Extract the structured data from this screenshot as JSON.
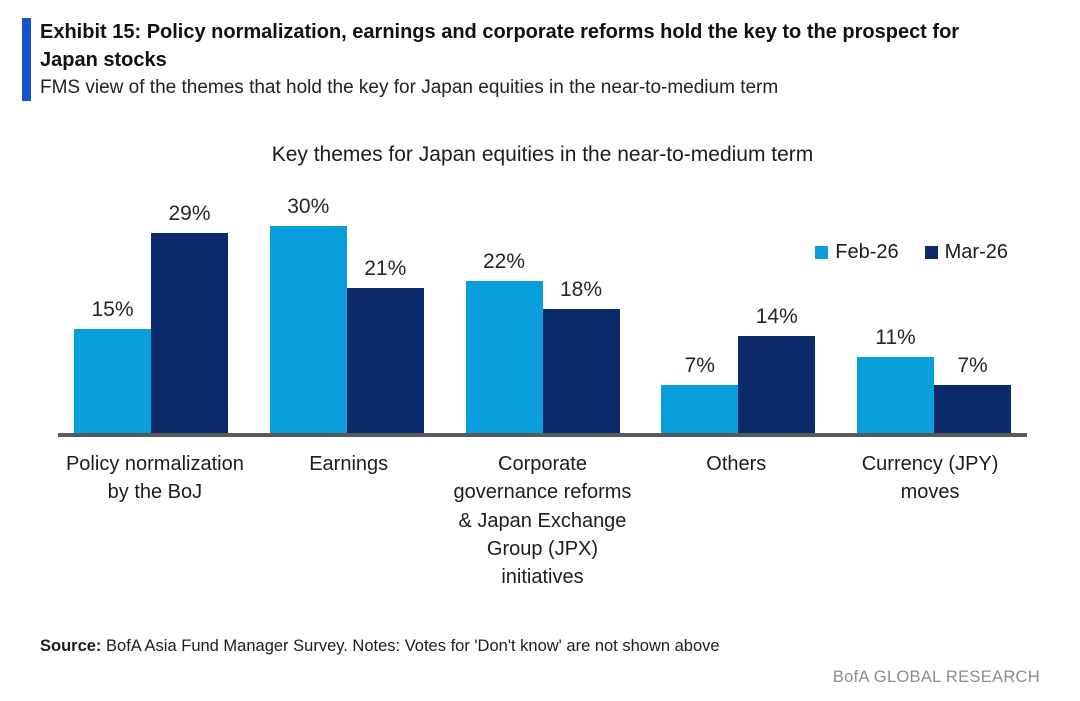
{
  "header": {
    "exhibit_title": "Exhibit 15: Policy normalization, earnings and corporate reforms hold the key to the prospect for Japan stocks",
    "subtitle": "FMS view of the themes that hold the key for Japan equities in the near-to-medium term",
    "accent_color": "#1553CE"
  },
  "chart_data": {
    "type": "bar",
    "title": "Key themes for Japan equities in the near-to-medium term",
    "categories": [
      {
        "label": "Policy normalization by the BoJ",
        "lines": [
          "Policy normalization",
          "by the BoJ"
        ]
      },
      {
        "label": "Earnings",
        "lines": [
          "Earnings"
        ]
      },
      {
        "label": "Corporate governance reforms & Japan Exchange Group (JPX) initiatives",
        "lines": [
          "Corporate",
          "governance reforms",
          "& Japan Exchange",
          "Group (JPX)",
          "initiatives"
        ]
      },
      {
        "label": "Others",
        "lines": [
          "Others"
        ]
      },
      {
        "label": "Currency (JPY) moves",
        "lines": [
          "Currency (JPY)",
          "moves"
        ]
      }
    ],
    "series": [
      {
        "name": "Feb-26",
        "color": "#0A9EDC",
        "values": [
          15,
          30,
          22,
          7,
          11
        ]
      },
      {
        "name": "Mar-26",
        "color": "#0B2A6B",
        "values": [
          29,
          21,
          18,
          14,
          7
        ]
      }
    ],
    "value_suffix": "%",
    "ylim": [
      0,
      30
    ],
    "grid": false,
    "data_labels": true,
    "legend_position": "top-right",
    "axis_line_color": "#58595B"
  },
  "footer": {
    "source_label": "Source:",
    "source_text": " BofA Asia Fund Manager Survey. Notes: Votes for 'Don't know' are not shown above",
    "brand": "BofA GLOBAL RESEARCH"
  }
}
